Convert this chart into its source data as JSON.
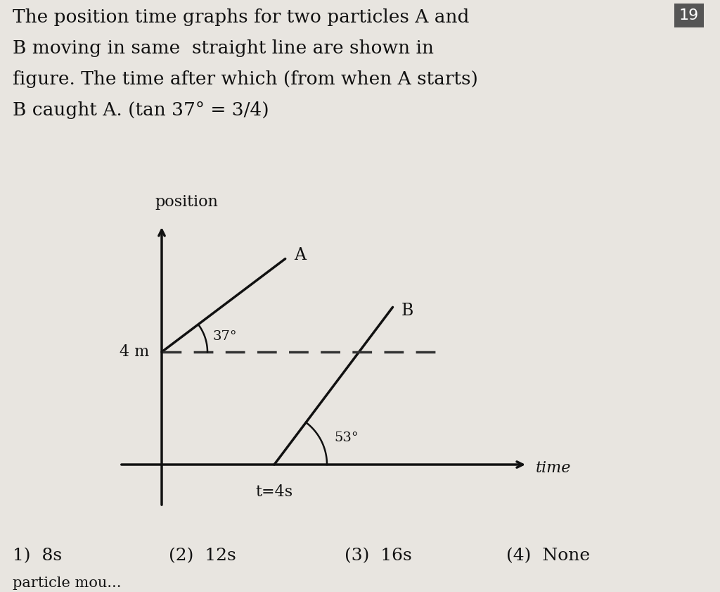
{
  "background_color": "#e8e5e0",
  "title_text_line1": "The position time graphs for two particles A and",
  "title_text_line2": "B moving in same  straight line are shown in",
  "title_text_line3": "figure. The time after which (from when A starts)",
  "title_text_line4": "B caught A. (tan 37° = 3/4)",
  "title_fontsize": 19,
  "title_color": "#111111",
  "ylabel": "position",
  "xlabel": "time",
  "label_fontsize": 16,
  "page_number": "19",
  "page_bg": "#555555",
  "line_color": "#111111",
  "dashed_color": "#333333",
  "text_color": "#111111",
  "four_m_label": "4 m",
  "angle_A_label": "37°",
  "angle_B_label": "53°",
  "label_A": "A",
  "label_B": "B",
  "t4_label": "t=4s",
  "answer_options": [
    "1)  8s",
    "(2)  12s",
    "(3)  16s",
    "(4)  None"
  ],
  "answer_fontsize": 18,
  "partial_text": "particle mou..."
}
